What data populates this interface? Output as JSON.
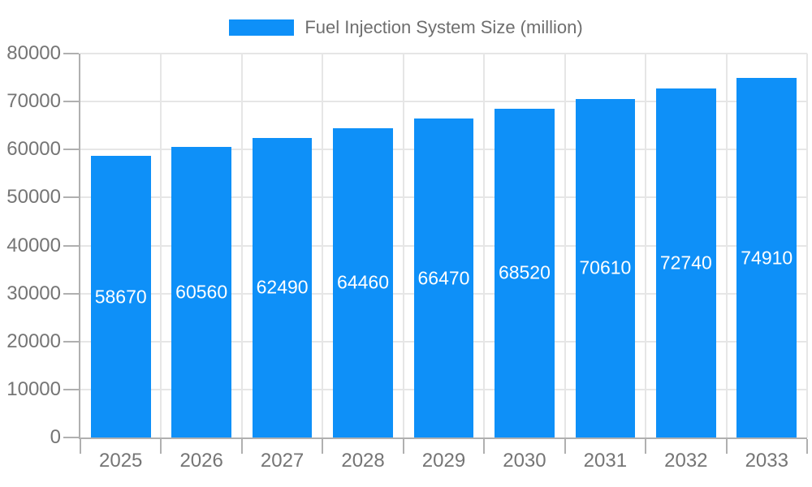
{
  "chart_data": {
    "type": "bar",
    "title": "Fuel Injection System Size (million)",
    "legend": [
      "Fuel Injection System Size (million)"
    ],
    "legend_position": "top-center",
    "categories": [
      "2025",
      "2026",
      "2027",
      "2028",
      "2029",
      "2030",
      "2031",
      "2032",
      "2033"
    ],
    "values": [
      58670,
      60560,
      62490,
      64460,
      66470,
      68520,
      70610,
      72740,
      74910
    ],
    "xlabel": "",
    "ylabel": "",
    "ylim": [
      0,
      80000
    ],
    "ytick_step": 10000,
    "yticks": [
      0,
      10000,
      20000,
      30000,
      40000,
      50000,
      60000,
      70000,
      80000
    ],
    "grid": true,
    "bar_label_position": "middle",
    "bar_label_color": "#ffffff"
  },
  "colors": {
    "bar": "#0e90f8",
    "grid": "#e6e6e6",
    "axis": "#b0b0b0",
    "tick_text": "#757575",
    "legend_text": "#6e6e6e",
    "background": "#ffffff"
  }
}
